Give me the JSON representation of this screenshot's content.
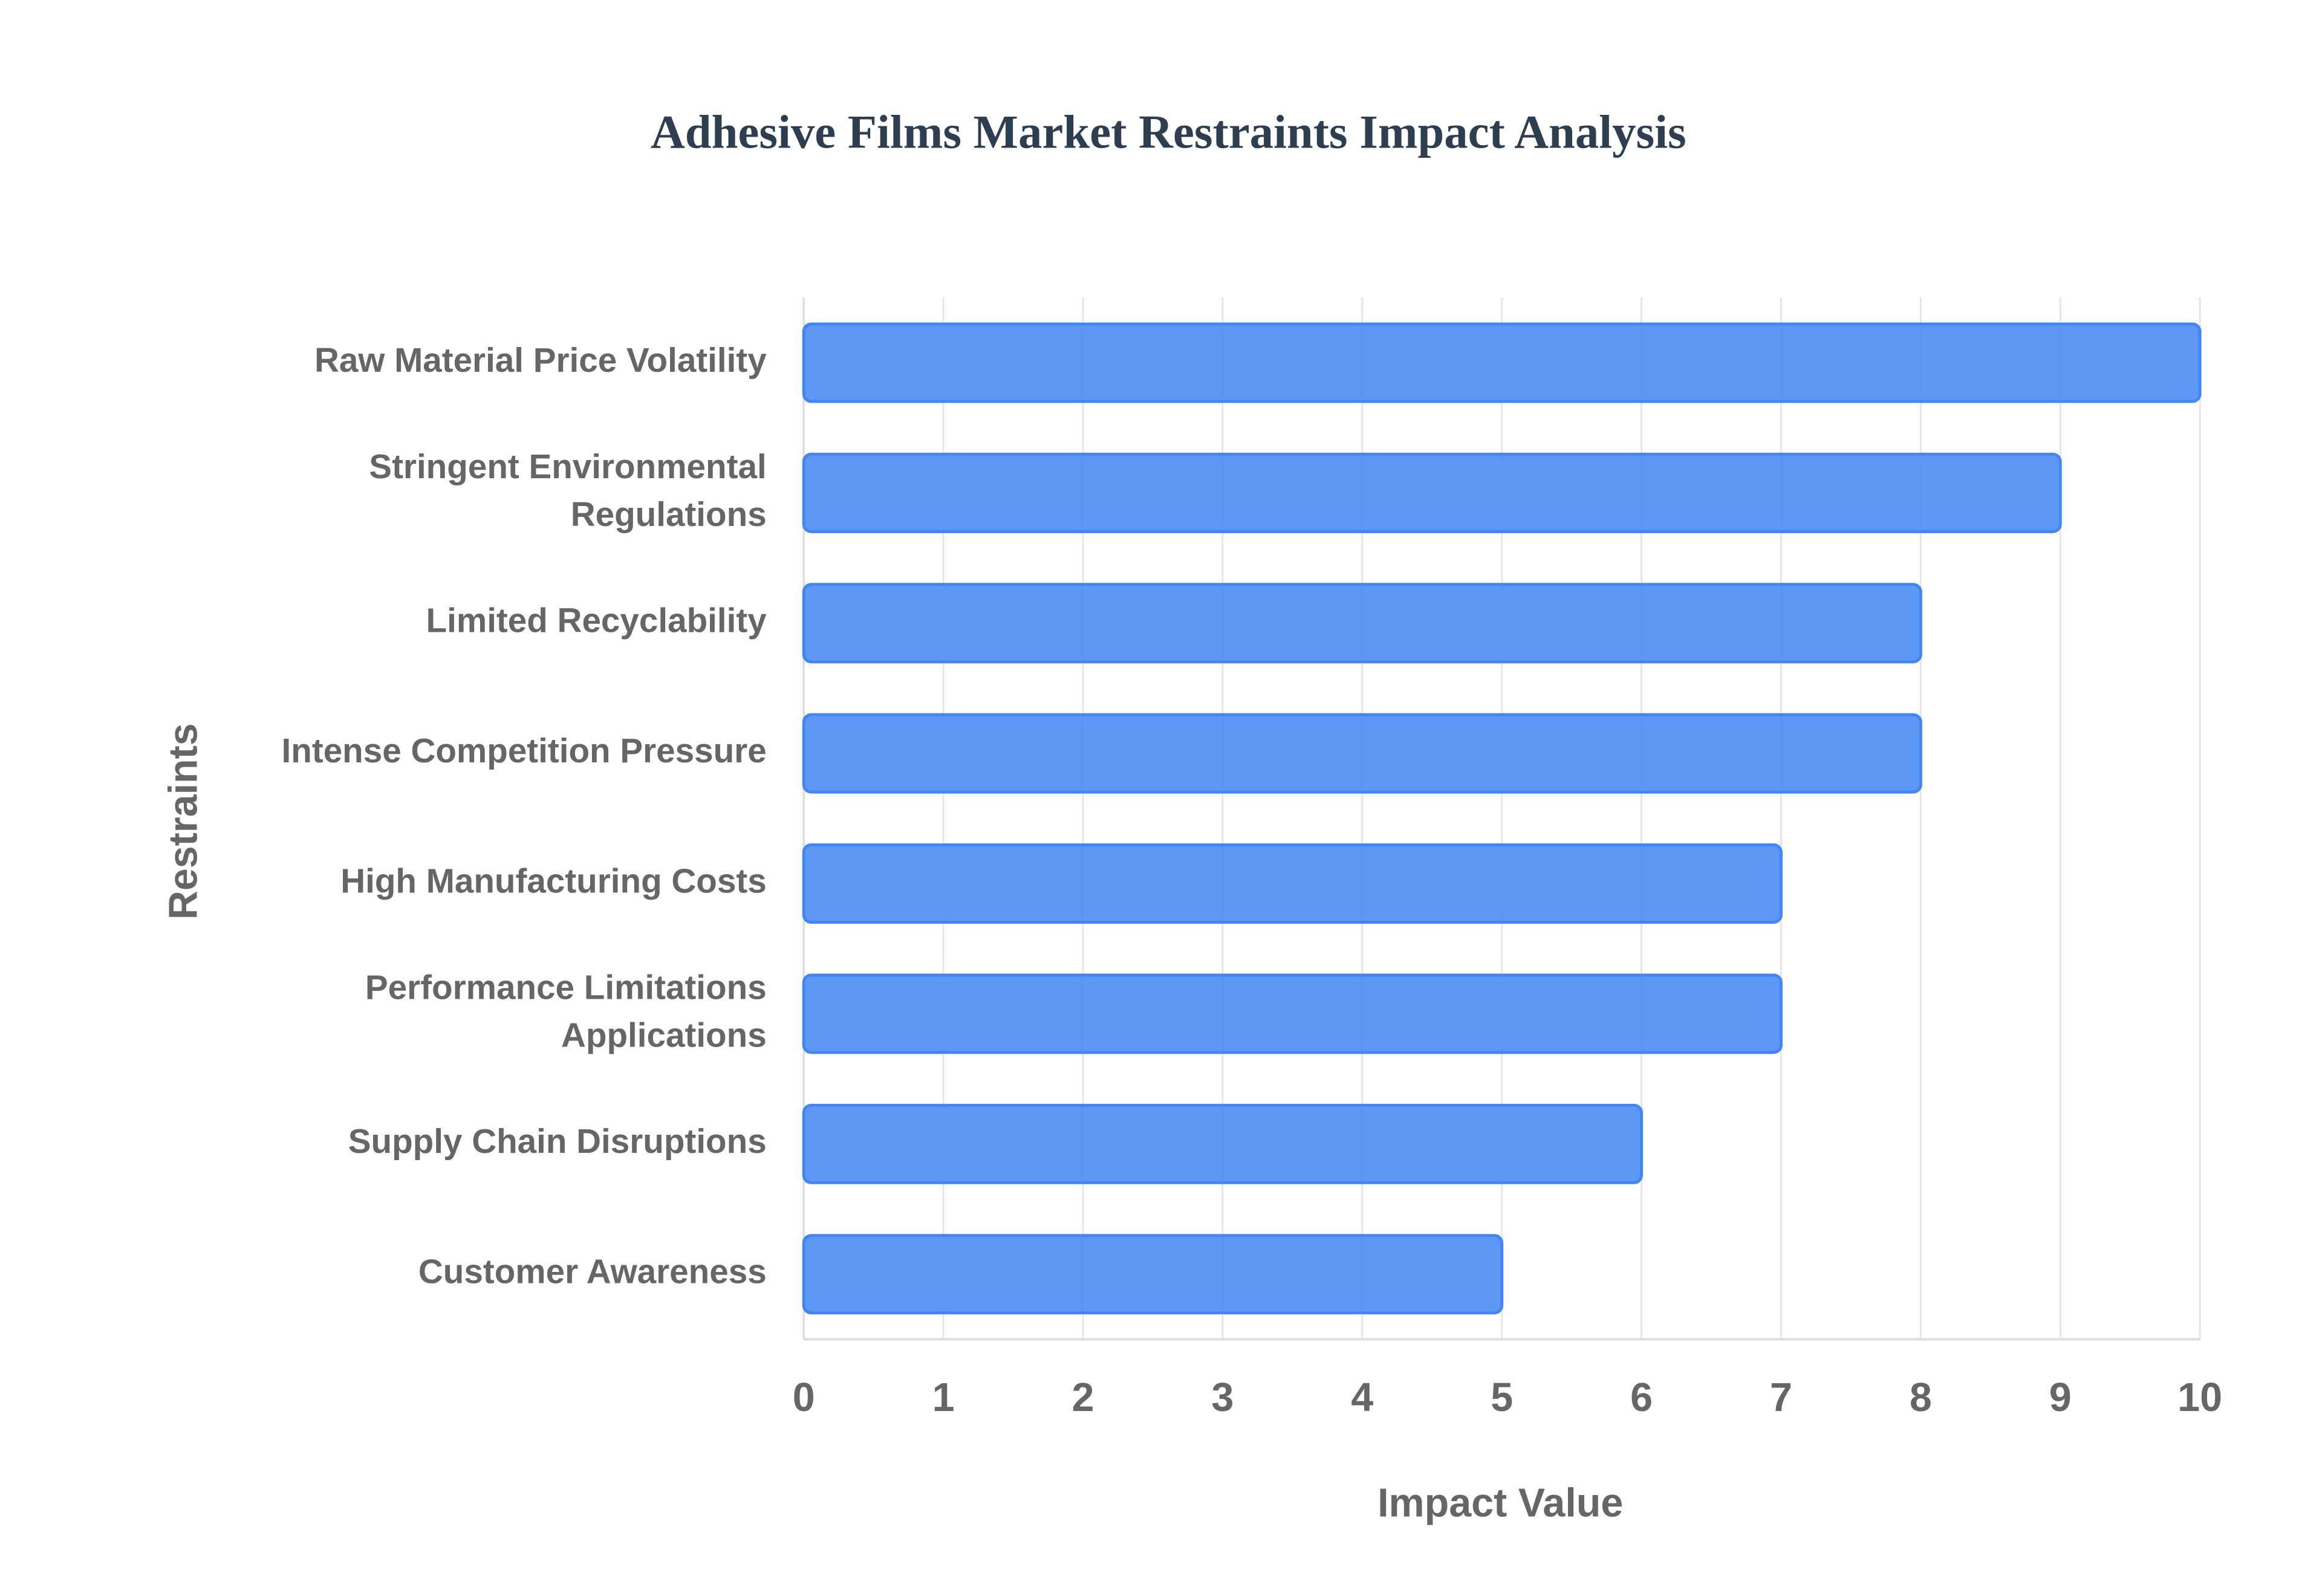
{
  "chart_data": {
    "type": "bar",
    "orientation": "horizontal",
    "title": "Adhesive Films Market Restraints Impact Analysis",
    "categories": [
      "Raw Material Price Volatility",
      "Stringent Environmental Regulations",
      "Limited Recyclability",
      "Intense Competition Pressure",
      "High Manufacturing Costs",
      "Performance Limitations Applications",
      "Supply Chain Disruptions",
      "Customer Awareness"
    ],
    "values": [
      10,
      9,
      8,
      8,
      7,
      7,
      6,
      5
    ],
    "color": "#4285f4",
    "x_label": "Impact Value",
    "y_label": "Restraints",
    "xlim": [
      0,
      10
    ],
    "xticks": [
      0,
      1,
      2,
      3,
      4,
      5,
      6,
      7,
      8,
      9,
      10
    ],
    "grid": true
  }
}
